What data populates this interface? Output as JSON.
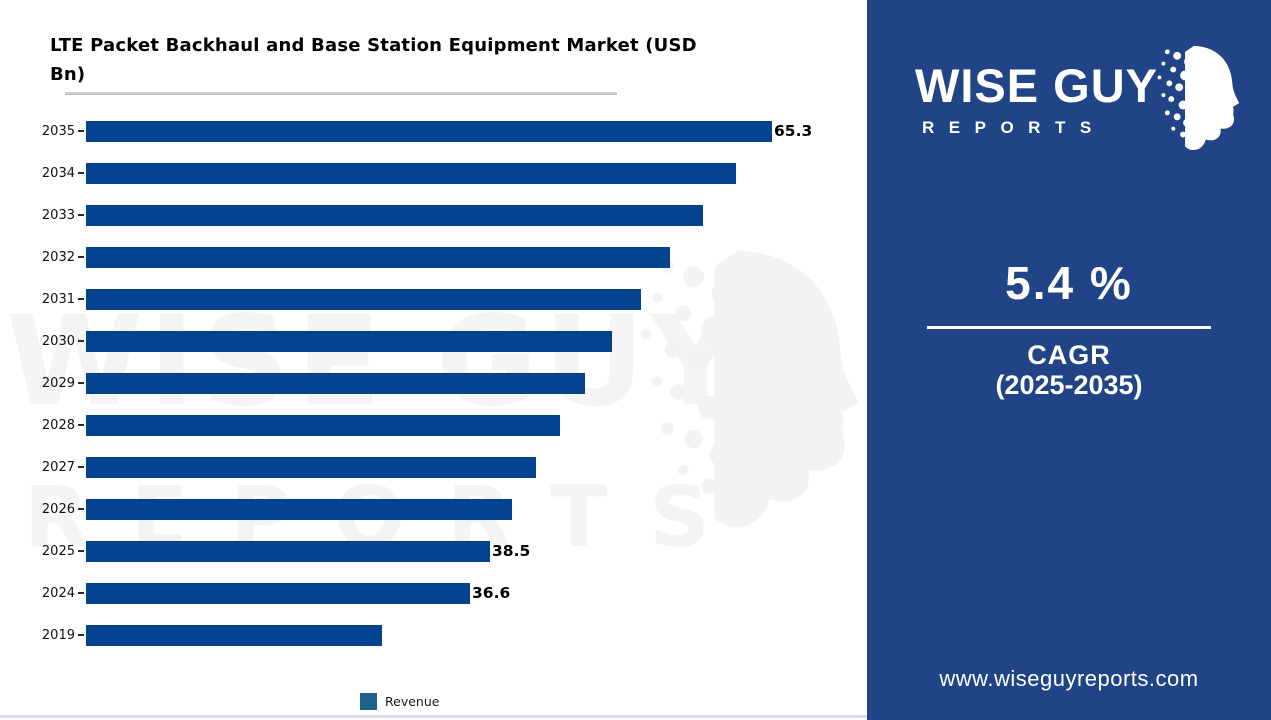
{
  "chart": {
    "title_lines": [
      "LTE Packet Backhaul and Base Station Equipment Market (USD",
      "Bn)"
    ]
  },
  "chart_data": {
    "type": "bar",
    "orientation": "horizontal",
    "title": "LTE Packet Backhaul and Base Station Equipment Market (USD Bn)",
    "categories": [
      "2035",
      "2034",
      "2033",
      "2032",
      "2031",
      "2030",
      "2029",
      "2028",
      "2027",
      "2026",
      "2025",
      "2024",
      "2019"
    ],
    "series": [
      {
        "name": "Revenue",
        "values": [
          65.3,
          61.9,
          58.8,
          55.6,
          52.9,
          50.1,
          47.5,
          45.1,
          42.9,
          40.6,
          38.5,
          36.6,
          28.2
        ]
      }
    ],
    "value_labels": [
      "65.3",
      "",
      "",
      "",
      "",
      "",
      "",
      "",
      "",
      "",
      "38.5",
      "36.6",
      ""
    ],
    "xlim": [
      0,
      69
    ],
    "grid": false,
    "bar_color": "#04418f",
    "legend": {
      "position": "bottom-center",
      "items": [
        {
          "label": "Revenue",
          "color": "#1f618d"
        }
      ]
    }
  },
  "watermark": {
    "line1": "WISE GUY",
    "line2": "REPORTS"
  },
  "side_panel": {
    "background_color": "#214487",
    "logo": {
      "line1": "WISE GUY",
      "line2": "REPORTS",
      "icon": "dotted-head-profile-icon"
    },
    "cagr_value": "5.4 %",
    "cagr_label": "CAGR",
    "cagr_period": "(2025-2035)",
    "website": "www.wiseguyreports.com"
  }
}
